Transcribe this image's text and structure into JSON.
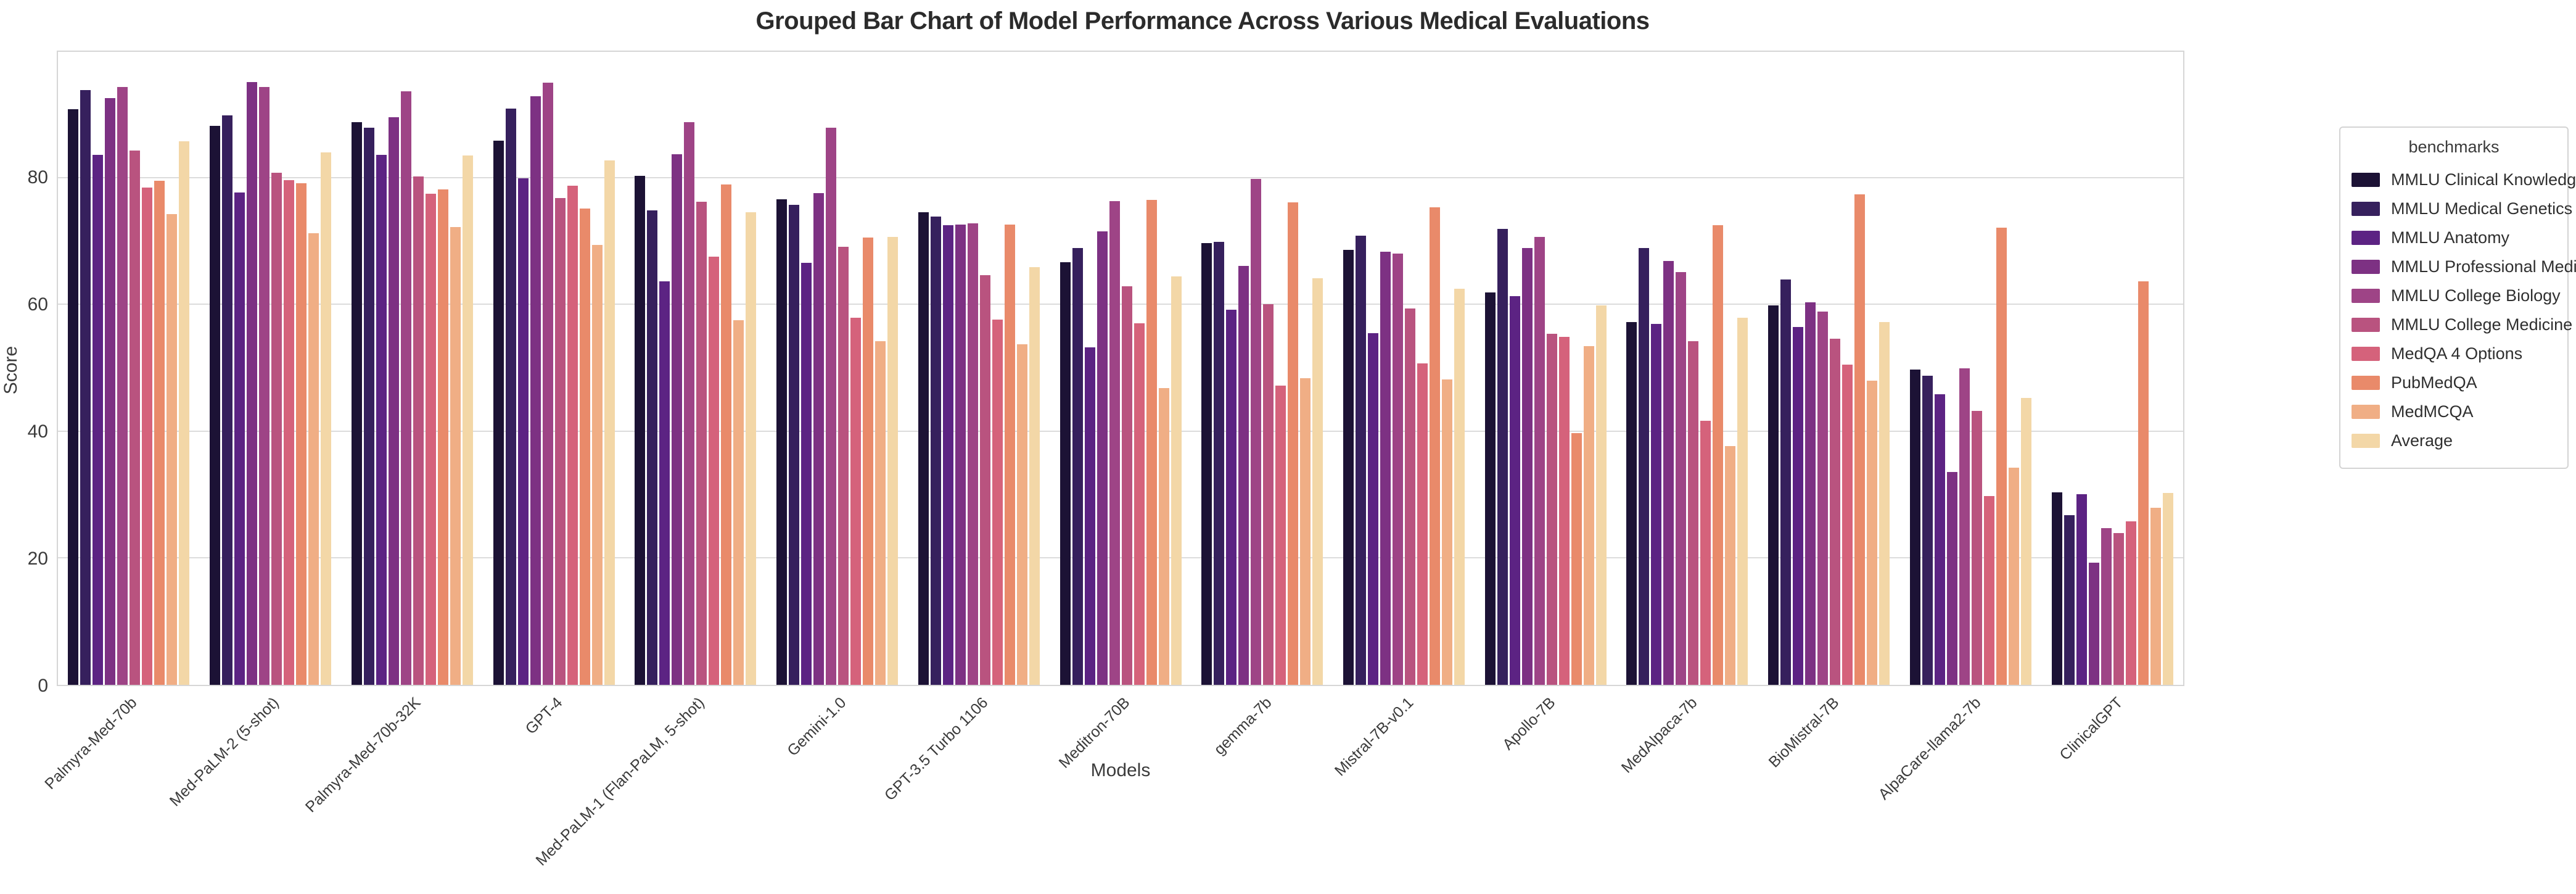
{
  "figure": {
    "title": "Grouped Bar Chart of Model Performance Across Various Medical Evaluations",
    "xlabel": "Models",
    "ylabel": "Score",
    "legend_title": "benchmarks"
  },
  "chart_data": {
    "type": "bar",
    "title": "Grouped Bar Chart of Model Performance Across Various Medical Evaluations",
    "xlabel": "Models",
    "ylabel": "Score",
    "ylim": [
      0,
      100
    ],
    "yticks": [
      0,
      20,
      40,
      60,
      80
    ],
    "grid": true,
    "legend_title": "benchmarks",
    "legend_position": "right",
    "categories": [
      "Palmyra-Med-70b",
      "Med-PaLM-2 (5-shot)",
      "Palmyra-Med-70b-32K",
      "GPT-4",
      "Med-PaLM-1 (Flan-PaLM, 5-shot)",
      "Gemini-1.0",
      "GPT-3.5 Turbo 1106",
      "Meditron-70B",
      "gemma-7b",
      "Mistral-7B-v0.1",
      "Apollo-7B",
      "MedAlpaca-7b",
      "BioMistral-7B",
      "AlpaCare-llama2-7b",
      "ClinicalGPT"
    ],
    "series": [
      {
        "name": "MMLU Clinical Knowledge",
        "color": "#1c1235",
        "values": [
          90.9,
          88.3,
          88.9,
          86.0,
          80.4,
          76.7,
          74.7,
          66.8,
          69.8,
          68.7,
          62.0,
          57.3,
          59.9,
          49.8,
          30.4
        ]
      },
      {
        "name": "MMLU Medical Genetics",
        "color": "#36205d",
        "values": [
          94.0,
          90.0,
          88.0,
          91.0,
          75.0,
          75.8,
          74.0,
          69.0,
          70.0,
          71.0,
          72.0,
          69.0,
          64.0,
          48.8,
          26.8
        ]
      },
      {
        "name": "MMLU Anatomy",
        "color": "#5c2383",
        "values": [
          83.7,
          77.8,
          83.7,
          80.0,
          63.7,
          66.7,
          72.6,
          53.3,
          59.3,
          55.6,
          61.4,
          57.0,
          56.5,
          45.9,
          30.1
        ]
      },
      {
        "name": "MMLU Professional Medicine",
        "color": "#7d3183",
        "values": [
          92.7,
          95.2,
          89.7,
          93.0,
          83.8,
          77.7,
          72.7,
          71.6,
          66.2,
          68.4,
          69.0,
          67.0,
          60.4,
          33.6,
          19.3
        ]
      },
      {
        "name": "MMLU College Biology",
        "color": "#9e4486",
        "values": [
          94.4,
          94.4,
          93.8,
          95.1,
          88.9,
          88.0,
          72.9,
          76.4,
          79.9,
          68.1,
          70.8,
          65.2,
          59.0,
          50.0,
          24.8
        ]
      },
      {
        "name": "MMLU College Medicine",
        "color": "#b9537f",
        "values": [
          84.4,
          80.9,
          80.3,
          76.9,
          76.3,
          69.2,
          64.7,
          63.0,
          60.1,
          59.5,
          55.5,
          54.3,
          54.7,
          43.3,
          24.0
        ]
      },
      {
        "name": "MedQA 4 Options",
        "color": "#d5627b",
        "values": [
          78.6,
          79.7,
          77.6,
          78.9,
          67.6,
          58.0,
          57.7,
          57.1,
          47.3,
          50.8,
          55.0,
          41.7,
          50.6,
          29.8,
          25.8
        ]
      },
      {
        "name": "PubMedQA",
        "color": "#e98a6a",
        "values": [
          79.6,
          79.2,
          78.3,
          75.2,
          79.0,
          70.7,
          72.7,
          76.6,
          76.2,
          75.4,
          39.8,
          72.6,
          77.5,
          72.2,
          63.7
        ]
      },
      {
        "name": "MedMCQA",
        "color": "#f0ae85",
        "values": [
          74.4,
          71.3,
          72.3,
          69.5,
          57.6,
          54.3,
          53.8,
          46.9,
          48.4,
          48.2,
          53.5,
          37.7,
          48.1,
          34.3,
          28.0
        ]
      },
      {
        "name": "Average",
        "color": "#f3d7a7",
        "values": [
          85.9,
          84.1,
          83.6,
          82.8,
          74.7,
          70.8,
          66.0,
          64.5,
          64.2,
          62.6,
          59.9,
          58.0,
          57.3,
          45.3,
          30.3
        ]
      }
    ]
  }
}
